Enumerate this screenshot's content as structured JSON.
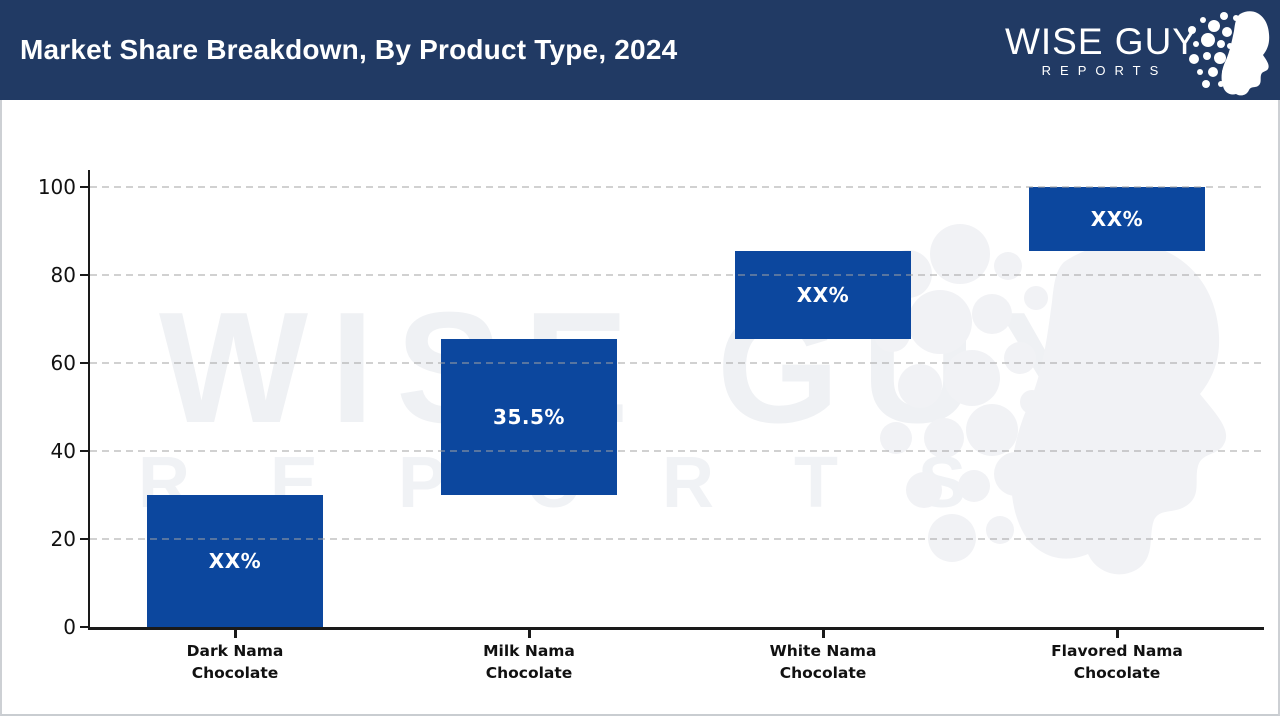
{
  "header": {
    "title": "Market Share Breakdown, By Product Type, 2024",
    "logo": {
      "line1": "WISE GUY",
      "line2": "REPORTS"
    }
  },
  "watermark": {
    "line1": "WISE GUY",
    "line2": "REPORTS"
  },
  "colors": {
    "header_bg": "#213a64",
    "bar": "#0c479e",
    "gridline": "#d9d9d9",
    "axis": "#1a1a1a",
    "watermark": "#eff1f4",
    "frame_border": "#cdd0d4"
  },
  "chart_data": {
    "type": "bar",
    "subtype": "floating-segment-waterfall",
    "title": "Market Share Breakdown, By Product Type, 2024",
    "ylim": [
      0,
      100
    ],
    "yticks": [
      0,
      20,
      40,
      60,
      80,
      100
    ],
    "grid": "dashed-horizontal",
    "legend": "none",
    "categories": [
      "Dark Nama Chocolate",
      "Milk Nama Chocolate",
      "White Nama Chocolate",
      "Flavored Nama Chocolate"
    ],
    "bars": [
      {
        "category_lines": [
          "Dark Nama",
          "Chocolate"
        ],
        "from": 0,
        "to": 30,
        "label": "XX%"
      },
      {
        "category_lines": [
          "Milk Nama",
          "Chocolate"
        ],
        "from": 30,
        "to": 65.5,
        "label": "35.5%"
      },
      {
        "category_lines": [
          "White Nama",
          "Chocolate"
        ],
        "from": 65.5,
        "to": 85.5,
        "label": "XX%"
      },
      {
        "category_lines": [
          "Flavored Nama",
          "Chocolate"
        ],
        "from": 85.5,
        "to": 100,
        "label": "XX%"
      }
    ]
  }
}
